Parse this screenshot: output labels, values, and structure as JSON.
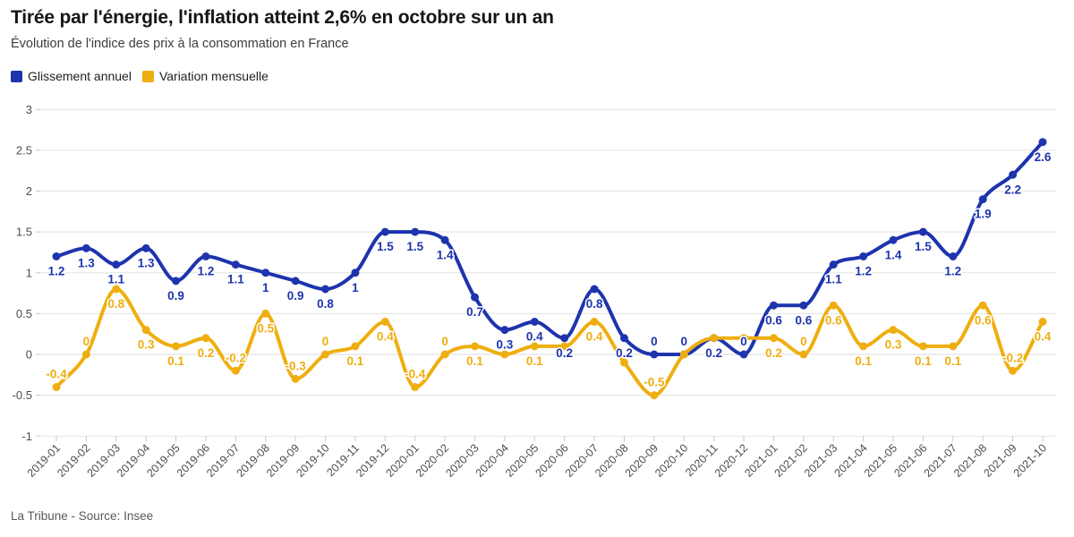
{
  "chart_data": {
    "type": "line",
    "title": "Tirée par l'énergie, l'inflation atteint 2,6% en octobre sur un an",
    "subtitle": "Évolution de l'indice des prix à la consommation en France",
    "source": "La Tribune - Source: Insee",
    "x": [
      "2019-01",
      "2019-02",
      "2019-03",
      "2019-04",
      "2019-05",
      "2019-06",
      "2019-07",
      "2019-08",
      "2019-09",
      "2019-10",
      "2019-11",
      "2019-12",
      "2020-01",
      "2020-02",
      "2020-03",
      "2020-04",
      "2020-05",
      "2020-06",
      "2020-07",
      "2020-08",
      "2020-09",
      "2020-10",
      "2020-11",
      "2020-12",
      "2021-01",
      "2021-02",
      "2021-03",
      "2021-04",
      "2021-05",
      "2021-06",
      "2021-07",
      "2021-08",
      "2021-09",
      "2021-10"
    ],
    "series": [
      {
        "name": "Glissement annuel",
        "color": "#1e34ad",
        "values": [
          1.2,
          1.3,
          1.1,
          1.3,
          0.9,
          1.2,
          1.1,
          1,
          0.9,
          0.8,
          1,
          1.5,
          1.5,
          1.4,
          0.7,
          0.3,
          0.4,
          0.2,
          0.8,
          0.2,
          0,
          0,
          0.2,
          0,
          0.6,
          0.6,
          1.1,
          1.2,
          1.4,
          1.5,
          1.2,
          1.9,
          2.2,
          2.6
        ],
        "hidden_label_indices": []
      },
      {
        "name": "Variation mensuelle",
        "color": "#efae10",
        "values": [
          -0.4,
          0,
          0.8,
          0.3,
          0.1,
          0.2,
          -0.2,
          0.5,
          -0.3,
          0,
          0.1,
          0.4,
          -0.4,
          0,
          0.1,
          0,
          0.1,
          0.1,
          0.4,
          -0.1,
          -0.5,
          0,
          0.2,
          0.2,
          0.2,
          0,
          0.6,
          0.1,
          0.3,
          0.1,
          0.1,
          0.6,
          -0.2,
          0.4
        ],
        "hidden_label_indices": [
          15,
          17,
          19,
          21,
          22,
          23
        ]
      }
    ],
    "ylim": [
      -1,
      3
    ],
    "yticks": [
      3,
      2.5,
      2,
      1.5,
      1,
      0.5,
      0,
      -0.5,
      -1
    ],
    "grid": true,
    "legend_position": "top-left"
  }
}
